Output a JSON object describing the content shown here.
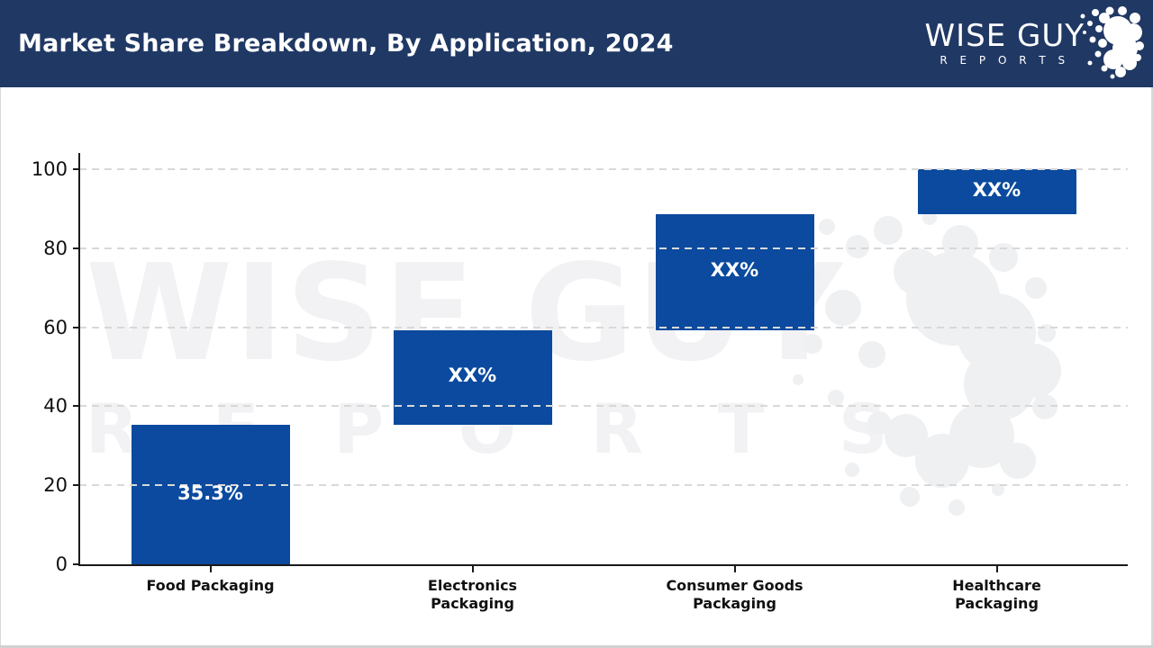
{
  "header": {
    "title": "Market Share Breakdown, By Application, 2024",
    "background_color": "#203864",
    "logo": {
      "name": "WISE GUY",
      "tagline": "R E P O R T S",
      "icon": "dotted-head-profile"
    }
  },
  "watermark": {
    "name": "WISE GUY",
    "tagline": "R E P O R T S",
    "icon": "dotted-head-profile",
    "color": "#f2f2f4"
  },
  "chart_data": {
    "type": "bar",
    "variant": "waterfall",
    "title": "Market Share Breakdown, By Application, 2024",
    "xlabel": "",
    "ylabel": "",
    "ylim": [
      0,
      100
    ],
    "y_ticks": [
      0,
      20,
      40,
      60,
      80,
      100
    ],
    "grid": "horizontal-dashed-over-bars",
    "legend": "none",
    "bar_color": "#0b4a9e",
    "label_color": "#ffffff",
    "categories": [
      "Food Packaging",
      "Electronics Packaging",
      "Consumer Goods Packaging",
      "Healthcare Packaging"
    ],
    "category_lines": [
      [
        "Food Packaging"
      ],
      [
        "Electronics",
        "Packaging"
      ],
      [
        "Consumer Goods",
        "Packaging"
      ],
      [
        "Healthcare",
        "Packaging"
      ]
    ],
    "segments": [
      {
        "category": "Food Packaging",
        "start": 0,
        "end": 35.3,
        "value": 35.3,
        "label": "35.3%"
      },
      {
        "category": "Electronics Packaging",
        "start": 35.3,
        "end": 59.3,
        "value": 24.0,
        "label": "XX%"
      },
      {
        "category": "Consumer Goods Packaging",
        "start": 59.3,
        "end": 88.7,
        "value": 29.4,
        "label": "XX%"
      },
      {
        "category": "Healthcare Packaging",
        "start": 88.7,
        "end": 100,
        "value": 11.3,
        "label": "XX%"
      }
    ]
  }
}
